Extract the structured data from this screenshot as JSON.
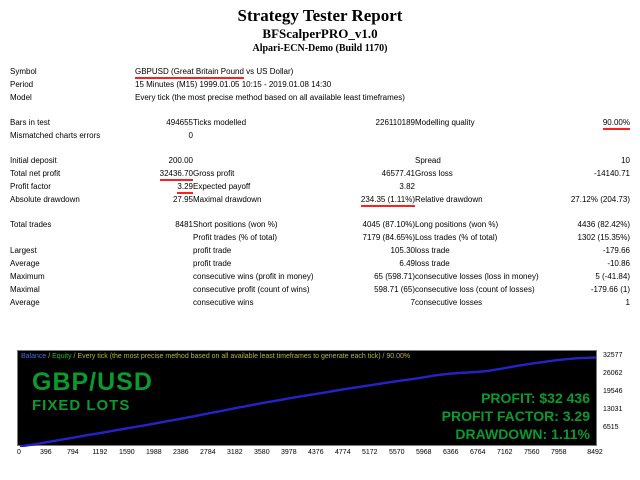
{
  "colors": {
    "accent_red": "#ff1f1f",
    "curve_blue": "#2323cc",
    "overlay_green": "#0a9b2e",
    "chart_bg": "#000000"
  },
  "header": {
    "title": "Strategy Tester Report",
    "subtitle": "BFScalperPRO_v1.0",
    "server": "Alpari-ECN-Demo (Build 1170)"
  },
  "report": {
    "rows": [
      {
        "cells": [
          {
            "t": "Symbol"
          },
          {
            "span": 5,
            "cls": "wide",
            "parts": [
              {
                "t": "GBPUSD (Great Britain Pound",
                "u": true
              },
              {
                "t": " vs US Dollar)"
              }
            ]
          }
        ]
      },
      {
        "cells": [
          {
            "t": "Period"
          },
          {
            "t": "15 Minutes (M15) 1999.01.05 10:15 - 2019.01.08 14:30",
            "span": 5,
            "cls": "wide"
          }
        ]
      },
      {
        "cells": [
          {
            "t": "Model"
          },
          {
            "t": "Every tick (the most precise method based on all available least timeframes)",
            "span": 5,
            "cls": "wide"
          }
        ]
      },
      {
        "spacer": true
      },
      {
        "cells": [
          {
            "t": "Bars in test"
          },
          {
            "t": "494655",
            "cls": "val"
          },
          {
            "t": "Ticks modelled"
          },
          {
            "t": "226110189",
            "cls": "val"
          },
          {
            "t": "Modelling quality"
          },
          {
            "t": "90.00%",
            "cls": "val",
            "u": true
          }
        ]
      },
      {
        "cells": [
          {
            "t": "Mismatched charts errors"
          },
          {
            "t": "0",
            "cls": "val"
          },
          {
            "t": ""
          },
          {
            "t": "",
            "cls": "val"
          },
          {
            "t": ""
          },
          {
            "t": "",
            "cls": "val"
          }
        ]
      },
      {
        "spacer": true
      },
      {
        "cells": [
          {
            "t": "Initial deposit"
          },
          {
            "t": "200.00",
            "cls": "val"
          },
          {
            "t": ""
          },
          {
            "t": "",
            "cls": "val"
          },
          {
            "t": "Spread"
          },
          {
            "t": "10",
            "cls": "val"
          }
        ]
      },
      {
        "cells": [
          {
            "t": "Total net profit"
          },
          {
            "t": "32436.70",
            "cls": "val",
            "u": true
          },
          {
            "t": "Gross profit"
          },
          {
            "t": "46577.41",
            "cls": "val"
          },
          {
            "t": "Gross loss"
          },
          {
            "t": "-14140.71",
            "cls": "val"
          }
        ]
      },
      {
        "cells": [
          {
            "t": "Profit factor"
          },
          {
            "t": "3.29",
            "cls": "val",
            "u": true
          },
          {
            "t": "Expected payoff"
          },
          {
            "t": "3.82",
            "cls": "val"
          },
          {
            "t": ""
          },
          {
            "t": "",
            "cls": "val"
          }
        ]
      },
      {
        "cells": [
          {
            "t": "Absolute drawdown"
          },
          {
            "t": "27.95",
            "cls": "val"
          },
          {
            "t": "Maximal drawdown"
          },
          {
            "t": "234.35 (1.11%)",
            "cls": "val",
            "u": true
          },
          {
            "t": "Relative drawdown"
          },
          {
            "t": "27.12% (204.73)",
            "cls": "val"
          }
        ]
      },
      {
        "spacer": true
      },
      {
        "cells": [
          {
            "t": "Total trades"
          },
          {
            "t": "8481",
            "cls": "val"
          },
          {
            "t": "Short positions (won %)"
          },
          {
            "t": "4045 (87.10%)",
            "cls": "val"
          },
          {
            "t": "Long positions (won %)"
          },
          {
            "t": "4436 (82.42%)",
            "cls": "val"
          }
        ]
      },
      {
        "cells": [
          {
            "t": ""
          },
          {
            "t": "",
            "cls": "val"
          },
          {
            "t": "Profit trades (% of total)"
          },
          {
            "t": "7179 (84.65%)",
            "cls": "val"
          },
          {
            "t": "Loss trades (% of total)"
          },
          {
            "t": "1302 (15.35%)",
            "cls": "val"
          }
        ]
      },
      {
        "cells": [
          {
            "t": "Largest"
          },
          {
            "t": "",
            "cls": "val"
          },
          {
            "t": "profit trade"
          },
          {
            "t": "105.30",
            "cls": "val"
          },
          {
            "t": "loss trade"
          },
          {
            "t": "-179.66",
            "cls": "val"
          }
        ]
      },
      {
        "cells": [
          {
            "t": "Average"
          },
          {
            "t": "",
            "cls": "val"
          },
          {
            "t": "profit trade"
          },
          {
            "t": "6.49",
            "cls": "val"
          },
          {
            "t": "loss trade"
          },
          {
            "t": "-10.86",
            "cls": "val"
          }
        ]
      },
      {
        "cells": [
          {
            "t": "Maximum"
          },
          {
            "t": "",
            "cls": "val"
          },
          {
            "t": "consecutive wins (profit in money)"
          },
          {
            "t": "65 (598.71)",
            "cls": "val"
          },
          {
            "t": "consecutive losses (loss in money)"
          },
          {
            "t": "5 (-41.84)",
            "cls": "val"
          }
        ]
      },
      {
        "cells": [
          {
            "t": "Maximal"
          },
          {
            "t": "",
            "cls": "val"
          },
          {
            "t": "consecutive profit (count of wins)"
          },
          {
            "t": "598.71 (65)",
            "cls": "val"
          },
          {
            "t": "consecutive loss (count of losses)"
          },
          {
            "t": "-179.66 (1)",
            "cls": "val"
          }
        ]
      },
      {
        "cells": [
          {
            "t": "Average"
          },
          {
            "t": "",
            "cls": "val"
          },
          {
            "t": "consecutive wins"
          },
          {
            "t": "7",
            "cls": "val"
          },
          {
            "t": "consecutive losses"
          },
          {
            "t": "1",
            "cls": "val"
          }
        ]
      }
    ]
  },
  "chart_data": {
    "type": "line",
    "legend": {
      "balance": "Balance",
      "sep": " / ",
      "equity": "Equity",
      "rest": " / Every tick (the most precise method based on all available least timeframes to generate each tick) / 90.00%"
    },
    "xlim": [
      0,
      8492
    ],
    "ylim": [
      0,
      34800
    ],
    "x_ticks": [
      0,
      396,
      794,
      1192,
      1590,
      1988,
      2386,
      2784,
      3182,
      3580,
      3978,
      4376,
      4774,
      5172,
      5570,
      5968,
      6366,
      6764,
      7162,
      7560,
      7958,
      8492
    ],
    "y_ticks": [
      32577,
      26062,
      19546,
      13031,
      6515
    ],
    "series": [
      {
        "name": "Balance",
        "color": "#2323cc",
        "points": [
          [
            0,
            200
          ],
          [
            200,
            950
          ],
          [
            396,
            1750
          ],
          [
            600,
            2600
          ],
          [
            794,
            3400
          ],
          [
            1000,
            4300
          ],
          [
            1192,
            5100
          ],
          [
            1400,
            6000
          ],
          [
            1590,
            6800
          ],
          [
            1800,
            7700
          ],
          [
            1988,
            8500
          ],
          [
            2200,
            9500
          ],
          [
            2386,
            10300
          ],
          [
            2600,
            11300
          ],
          [
            2784,
            12200
          ],
          [
            3000,
            13200
          ],
          [
            3182,
            14100
          ],
          [
            3400,
            15100
          ],
          [
            3580,
            16000
          ],
          [
            3800,
            16900
          ],
          [
            3978,
            17700
          ],
          [
            4200,
            18600
          ],
          [
            4376,
            19300
          ],
          [
            4600,
            20200
          ],
          [
            4774,
            20900
          ],
          [
            5000,
            21800
          ],
          [
            5172,
            22400
          ],
          [
            5400,
            23300
          ],
          [
            5570,
            23900
          ],
          [
            5800,
            24700
          ],
          [
            5968,
            25300
          ],
          [
            6100,
            25900
          ],
          [
            6300,
            26500
          ],
          [
            6500,
            26900
          ],
          [
            6700,
            27100
          ],
          [
            6900,
            27600
          ],
          [
            7100,
            28400
          ],
          [
            7300,
            29300
          ],
          [
            7560,
            30300
          ],
          [
            7800,
            31100
          ],
          [
            7958,
            31600
          ],
          [
            8200,
            32150
          ],
          [
            8356,
            32350
          ],
          [
            8492,
            32436.7
          ]
        ]
      }
    ],
    "overlay": {
      "symbol": "GBP/USD",
      "mode": "FIXED LOTS",
      "profit": "PROFIT: $32 436",
      "profit_factor": "PROFIT FACTOR: 3.29",
      "drawdown": "DRAWDOWN: 1.11%"
    }
  }
}
